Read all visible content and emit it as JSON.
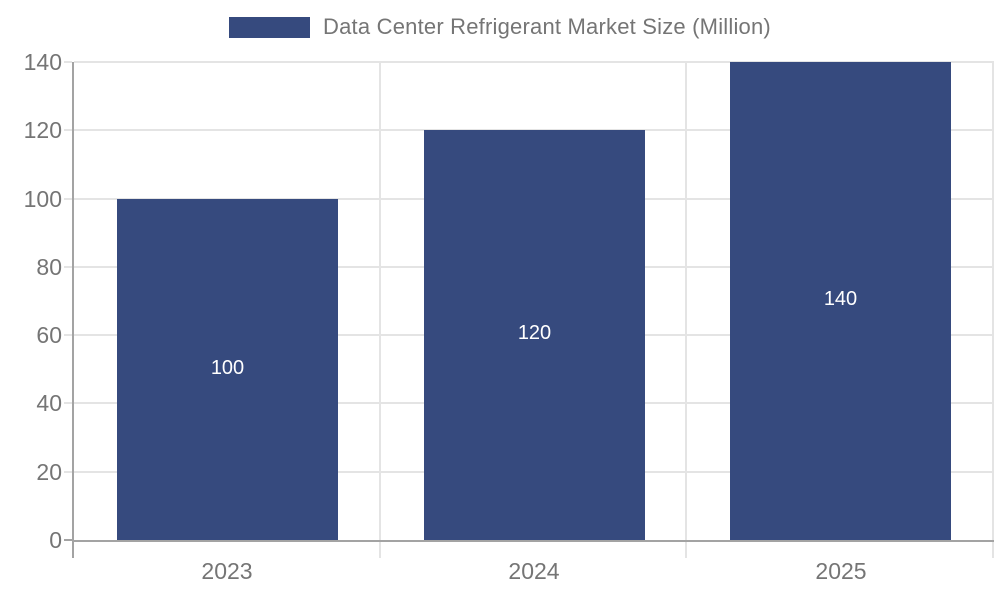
{
  "chart_data": {
    "type": "bar",
    "title": "Data Center Refrigerant Market Size (Million)",
    "categories": [
      "2023",
      "2024",
      "2025"
    ],
    "values": [
      100,
      120,
      140
    ],
    "value_labels": [
      "100",
      "120",
      "140"
    ],
    "ytick_labels": [
      "0",
      "20",
      "40",
      "60",
      "80",
      "100",
      "120",
      "140"
    ],
    "ylim": [
      0,
      140
    ],
    "ytick_step": 20,
    "grid": true,
    "legend_position": "top-center",
    "xlabel": "",
    "ylabel": "",
    "colors": {
      "bar": "#364A7E",
      "bar_value_text": "#ffffff",
      "axis_text": "#757575",
      "grid_line": "#e4e4e4",
      "axis_line": "#a3a3a3",
      "background": "#ffffff"
    }
  }
}
